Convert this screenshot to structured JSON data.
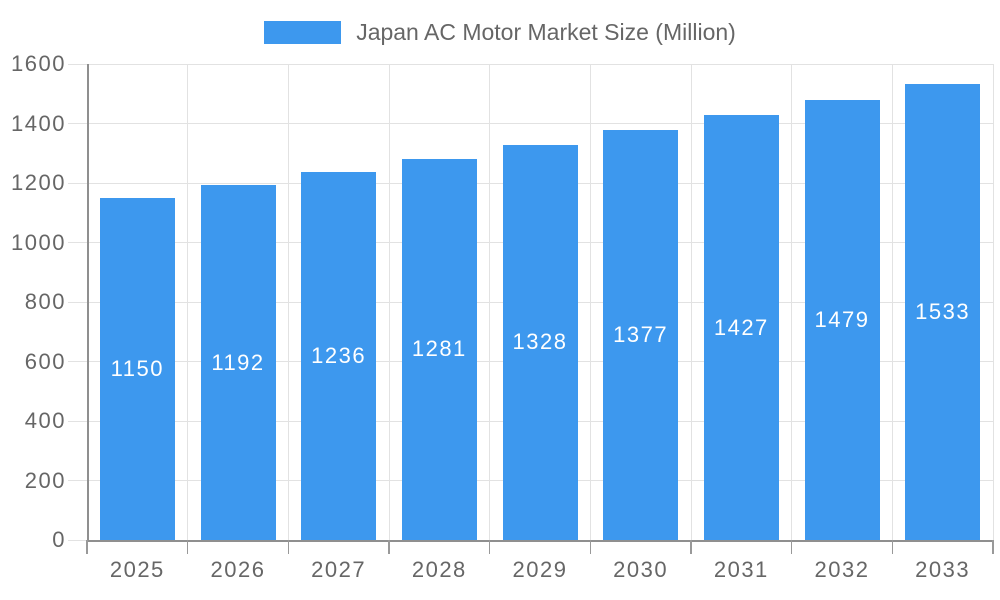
{
  "chart_data": {
    "type": "bar",
    "title": "Japan AC Motor Market Size (Million)",
    "categories": [
      "2025",
      "2026",
      "2027",
      "2028",
      "2029",
      "2030",
      "2031",
      "2032",
      "2033"
    ],
    "values": [
      1150,
      1192,
      1236,
      1281,
      1328,
      1377,
      1427,
      1479,
      1533
    ],
    "xlabel": "",
    "ylabel": "",
    "ylim": [
      0,
      1600
    ],
    "yticks": [
      0,
      200,
      400,
      600,
      800,
      1000,
      1200,
      1400,
      1600
    ],
    "grid": true,
    "legend_position": "top-center",
    "value_label_position": "inside-middle",
    "colors": {
      "bar": "#3D98EE",
      "grid": "#E2E2E2",
      "axis": "#8F8F8F",
      "tick": "#999999",
      "axis_text": "#666666",
      "legend_text": "#666666",
      "bar_label_text": "#FFFFFF",
      "background": "#FFFFFF"
    }
  }
}
